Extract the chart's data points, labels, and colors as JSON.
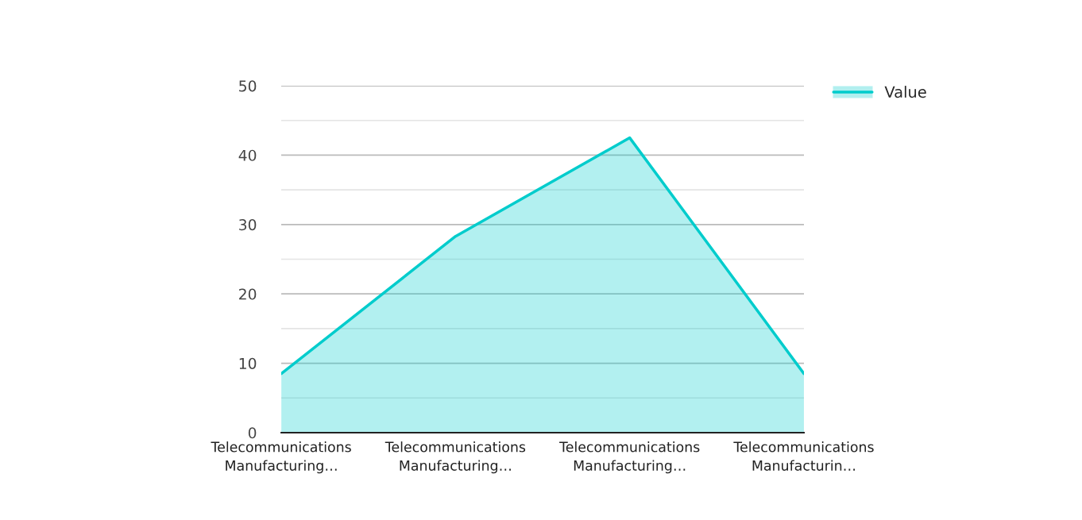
{
  "chart_data": {
    "type": "area",
    "categories": [
      "Telecommunications Manufacturing…",
      "Telecommunications Manufacturing…",
      "Telecommunications Manufacturing…",
      "Telecommunications Manufacturin…"
    ],
    "series": [
      {
        "name": "Value",
        "color": "#00cccc",
        "values": [
          8.5,
          28.3,
          42.5,
          8.5
        ]
      }
    ],
    "ylim": [
      0,
      50
    ],
    "yticks": [
      0,
      {
        "value": 5,
        "label": null
      },
      10,
      {
        "value": 15,
        "label": null
      },
      20,
      {
        "value": 25,
        "label": null
      },
      30,
      {
        "value": 35,
        "label": null
      },
      40,
      {
        "value": 45,
        "label": null
      },
      50
    ],
    "grid": "y",
    "legend": "top right"
  }
}
